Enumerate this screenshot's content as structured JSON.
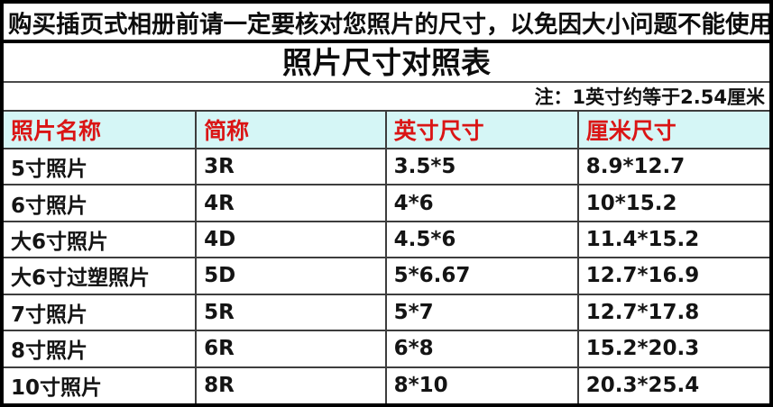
{
  "banner": {
    "text": "购买插页式相册前请一定要核对您照片的尺寸，以免因大小问题不能使用！"
  },
  "title": "照片尺寸对照表",
  "note": "注：1英寸约等于2.54厘米",
  "chart_data": {
    "type": "table",
    "title": "照片尺寸对照表",
    "columns": [
      "照片名称",
      "简称",
      "英寸尺寸",
      "厘米尺寸"
    ],
    "rows": [
      [
        "5寸照片",
        "3R",
        "3.5*5",
        "8.9*12.7"
      ],
      [
        "6寸照片",
        "4R",
        "4*6",
        "10*15.2"
      ],
      [
        "大6寸照片",
        "4D",
        "4.5*6",
        "11.4*15.2"
      ],
      [
        "大6寸过塑照片",
        "5D",
        "5*6.67",
        "12.7*16.9"
      ],
      [
        "7寸照片",
        "5R",
        "5*7",
        "12.7*17.8"
      ],
      [
        "8寸照片",
        "6R",
        "6*8",
        "15.2*20.3"
      ],
      [
        "10寸照片",
        "8R",
        "8*10",
        "20.3*25.4"
      ]
    ]
  },
  "colors": {
    "header_bg": "#d5f6f6",
    "header_text": "#da1515",
    "border": "#000000",
    "grid_line": "#3d3d3d",
    "body_text": "#141414"
  }
}
